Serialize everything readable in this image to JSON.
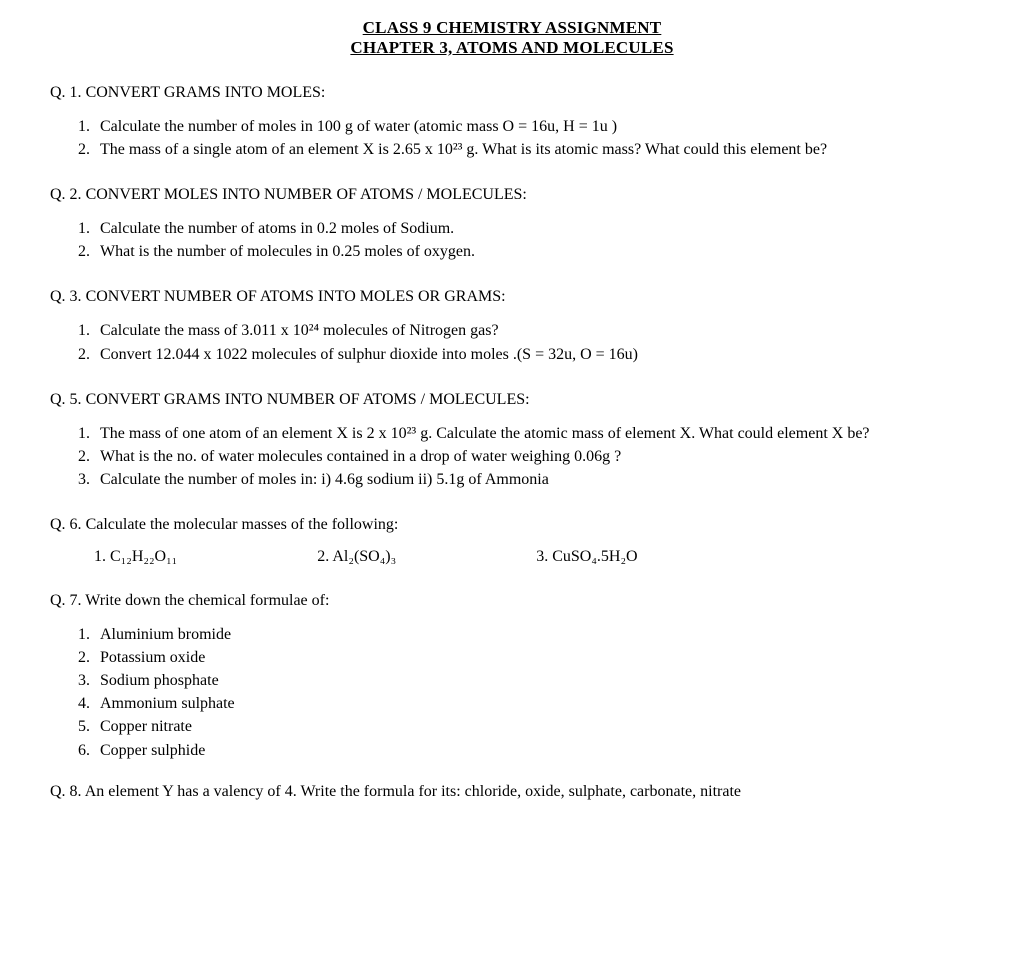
{
  "header": {
    "line1": "CLASS 9 CHEMISTRY ASSIGNMENT",
    "line2": "CHAPTER 3, ATOMS AND MOLECULES"
  },
  "q1": {
    "label": "Q. 1.",
    "title": "CONVERT GRAMS INTO MOLES:",
    "items": [
      "Calculate the number of moles in 100 g of water (atomic mass O = 16u, H = 1u )",
      "The mass of a single atom of an element X is 2.65 x 10²³ g. What is its atomic mass? What could this element be?"
    ]
  },
  "q2": {
    "label": "Q. 2.",
    "title": "CONVERT MOLES INTO NUMBER OF ATOMS / MOLECULES:",
    "items": [
      "Calculate the number of atoms in 0.2 moles of Sodium.",
      "What is the number of molecules in 0.25 moles of oxygen."
    ]
  },
  "q3": {
    "label": "Q. 3.",
    "title": "CONVERT NUMBER OF ATOMS INTO MOLES OR GRAMS:",
    "items": [
      "Calculate the mass of 3.011 x 10²⁴ molecules of Nitrogen gas?",
      "Convert 12.044 x 1022 molecules of sulphur dioxide into moles .(S = 32u, O = 16u)"
    ]
  },
  "q5": {
    "label": "Q. 5.",
    "title": "CONVERT GRAMS INTO NUMBER OF ATOMS / MOLECULES:",
    "items": [
      "The mass of one atom of an element X is 2 x 10²³ g. Calculate the atomic mass of element X. What could element X be?",
      "What is the no. of water molecules contained in a drop of water weighing 0.06g ?",
      "Calculate the number of moles in: i) 4.6g sodium ii) 5.1g of Ammonia"
    ]
  },
  "q6": {
    "label": "Q. 6.",
    "title": "Calculate the molecular masses of the following:",
    "items": [
      "1. C₁₂H₂₂O₁₁",
      "2. Al₂(SO₄)₃",
      "3. CuSO₄.5H₂O"
    ]
  },
  "q7": {
    "label": "Q. 7.",
    "title": "Write down the chemical formulae of:",
    "items": [
      "Aluminium bromide",
      "Potassium oxide",
      "Sodium phosphate",
      "Ammonium sulphate",
      "Copper nitrate",
      "Copper sulphide"
    ]
  },
  "q8": {
    "label": "Q. 8.",
    "text": "An element Y has a valency of 4. Write the formula for its: chloride, oxide, sulphate, carbonate, nitrate"
  },
  "style": {
    "page_bg": "#ffffff",
    "text_color": "#000000",
    "font_family": "Times New Roman",
    "heading_fontsize_pt": 13,
    "body_fontsize_pt": 12,
    "heading_underline": true,
    "heading_bold": true
  }
}
